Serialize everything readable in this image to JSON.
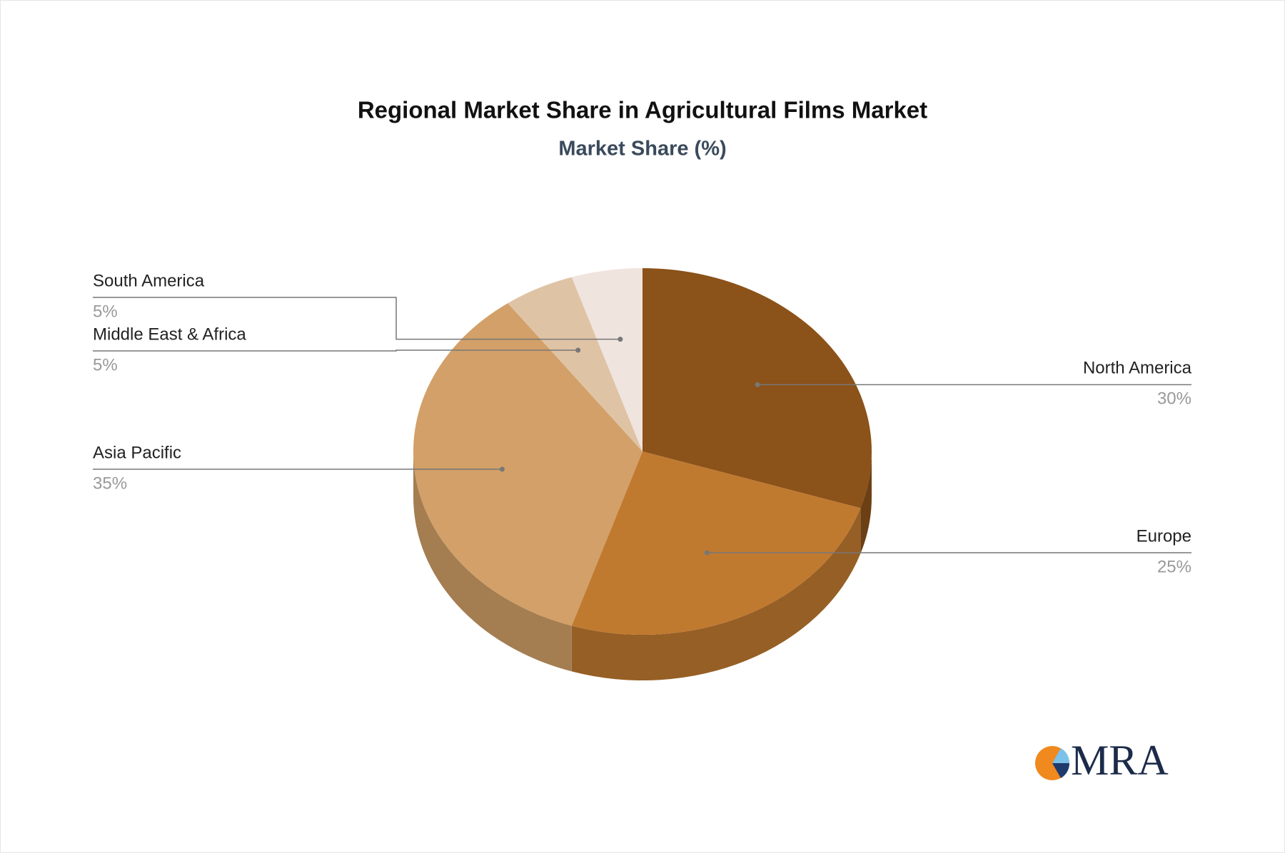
{
  "chart_data": {
    "type": "pie3d",
    "title": "Regional Market Share in Agricultural Films Market",
    "subtitle": "Market Share (%)",
    "categories": [
      "North America",
      "Europe",
      "Asia Pacific",
      "Middle East & Africa",
      "South America"
    ],
    "values": [
      30,
      25,
      35,
      5,
      5
    ],
    "value_labels": [
      "30%",
      "25%",
      "35%",
      "5%",
      "5%"
    ],
    "colors": [
      "#8b5219",
      "#c07a30",
      "#d2a068",
      "#dfc3a5",
      "#efe4de"
    ]
  },
  "logo": "MRA"
}
